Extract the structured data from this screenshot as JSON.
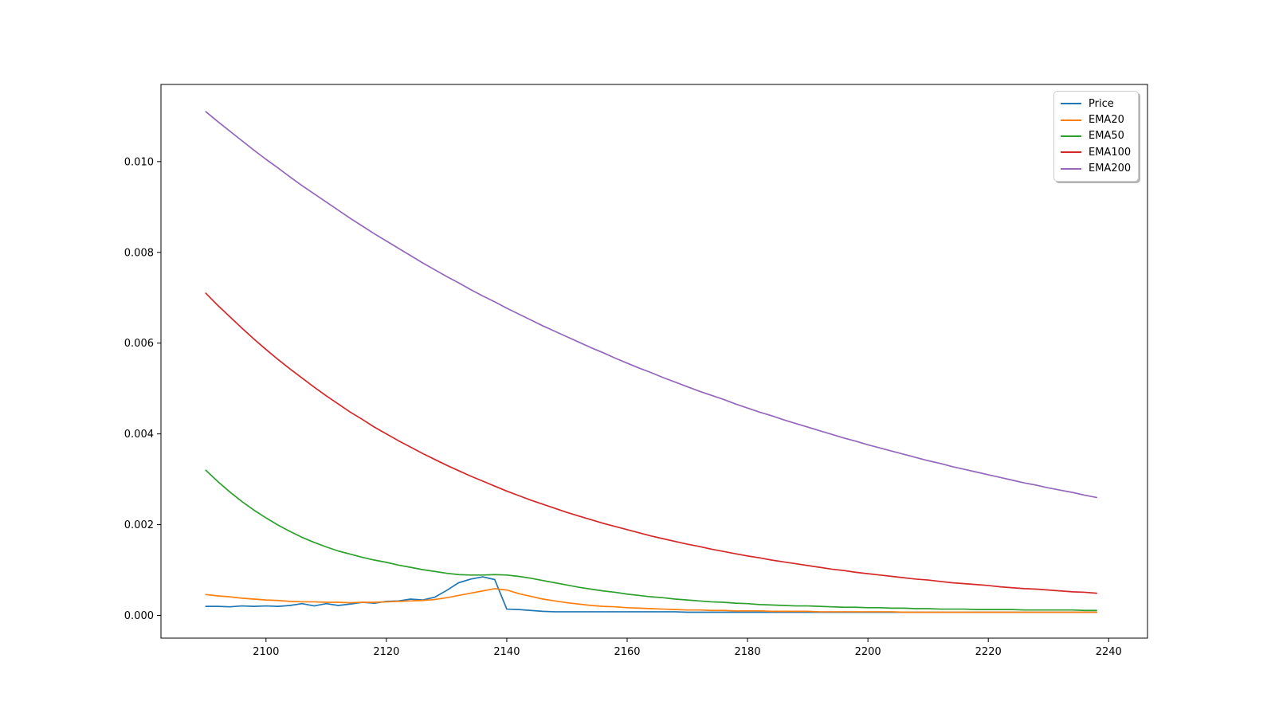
{
  "figure": {
    "background": "#ffffff",
    "frame_color": "#000000",
    "text_color": "#000000"
  },
  "legend": {
    "position": "upper right",
    "entries": [
      "Price",
      "EMA20",
      "EMA50",
      "EMA100",
      "EMA200"
    ]
  },
  "chart_data": {
    "type": "line",
    "title": "",
    "xlabel": "",
    "ylabel": "",
    "grid": false,
    "legend_position": "upper right",
    "xlim": [
      2082.55,
      2246.45
    ],
    "ylim": [
      -0.0005,
      0.0117
    ],
    "x_ticks": [
      2100,
      2120,
      2140,
      2160,
      2180,
      2200,
      2220,
      2240
    ],
    "x_tick_labels": [
      "2100",
      "2120",
      "2140",
      "2160",
      "2180",
      "2200",
      "2220",
      "2240"
    ],
    "y_ticks": [
      0.0,
      0.002,
      0.004,
      0.006,
      0.008,
      0.01
    ],
    "y_tick_labels": [
      "0.000",
      "0.002",
      "0.004",
      "0.006",
      "0.008",
      "0.010"
    ],
    "x": [
      2090,
      2092,
      2094,
      2096,
      2098,
      2100,
      2102,
      2104,
      2106,
      2108,
      2110,
      2112,
      2114,
      2116,
      2118,
      2120,
      2122,
      2124,
      2126,
      2128,
      2130,
      2132,
      2134,
      2136,
      2138,
      2140,
      2142,
      2144,
      2146,
      2148,
      2150,
      2152,
      2154,
      2156,
      2158,
      2160,
      2162,
      2164,
      2166,
      2168,
      2170,
      2172,
      2174,
      2176,
      2178,
      2180,
      2182,
      2184,
      2186,
      2188,
      2190,
      2192,
      2194,
      2196,
      2198,
      2200,
      2202,
      2204,
      2206,
      2208,
      2210,
      2212,
      2214,
      2216,
      2218,
      2220,
      2222,
      2224,
      2226,
      2228,
      2230,
      2232,
      2234,
      2236,
      2238
    ],
    "series": [
      {
        "name": "Price",
        "color": "#1f77b4",
        "values": [
          0.0002,
          0.0002,
          0.00019,
          0.00021,
          0.0002,
          0.00021,
          0.0002,
          0.00022,
          0.00026,
          0.00021,
          0.00026,
          0.00022,
          0.00025,
          0.00029,
          0.00027,
          0.00031,
          0.00032,
          0.00036,
          0.00034,
          0.0004,
          0.00055,
          0.00072,
          0.0008,
          0.00085,
          0.00079,
          0.00014,
          0.00013,
          0.00011,
          9e-05,
          8e-05,
          8e-05,
          8e-05,
          8e-05,
          8e-05,
          8e-05,
          8e-05,
          8e-05,
          8e-05,
          8e-05,
          8e-05,
          7e-05,
          7e-05,
          7e-05,
          7e-05,
          7e-05,
          7e-05,
          7e-05,
          7e-05,
          7e-05,
          7e-05,
          7e-05,
          7e-05,
          7e-05,
          7e-05,
          7e-05,
          7e-05,
          7e-05,
          7e-05,
          7e-05,
          7e-05,
          7e-05,
          7e-05,
          7e-05,
          7e-05,
          7e-05,
          7e-05,
          7e-05,
          7e-05,
          7e-05,
          7e-05,
          7e-05,
          7e-05,
          7e-05,
          7e-05,
          7e-05
        ]
      },
      {
        "name": "EMA20",
        "color": "#ff7f0e",
        "values": [
          0.00046,
          0.00043,
          0.00041,
          0.00038,
          0.00036,
          0.00034,
          0.00033,
          0.00031,
          0.0003,
          0.0003,
          0.00029,
          0.00029,
          0.00028,
          0.00029,
          0.00029,
          0.0003,
          0.00031,
          0.00032,
          0.00033,
          0.00035,
          0.00039,
          0.00044,
          0.00049,
          0.00054,
          0.00059,
          0.00056,
          0.00048,
          0.00042,
          0.00036,
          0.00032,
          0.00028,
          0.00025,
          0.00022,
          0.0002,
          0.00019,
          0.00017,
          0.00016,
          0.00015,
          0.00014,
          0.00013,
          0.00012,
          0.00012,
          0.00011,
          0.00011,
          0.0001,
          0.0001,
          0.0001,
          9e-05,
          9e-05,
          9e-05,
          9e-05,
          8e-05,
          8e-05,
          8e-05,
          8e-05,
          8e-05,
          8e-05,
          8e-05,
          7e-05,
          7e-05,
          7e-05,
          7e-05,
          7e-05,
          7e-05,
          7e-05,
          7e-05,
          7e-05,
          7e-05,
          7e-05,
          7e-05,
          7e-05,
          7e-05,
          7e-05,
          7e-05,
          7e-05
        ]
      },
      {
        "name": "EMA50",
        "color": "#2ca02c",
        "values": [
          0.0032,
          0.00295,
          0.00272,
          0.00251,
          0.00232,
          0.00215,
          0.00199,
          0.00185,
          0.00172,
          0.00161,
          0.00151,
          0.00142,
          0.00135,
          0.00128,
          0.00122,
          0.00117,
          0.00111,
          0.00106,
          0.00101,
          0.00097,
          0.00093,
          0.0009,
          0.00089,
          0.00089,
          0.0009,
          0.00089,
          0.00086,
          0.00082,
          0.00077,
          0.00072,
          0.00067,
          0.00062,
          0.00058,
          0.00054,
          0.00051,
          0.00047,
          0.00044,
          0.00041,
          0.00039,
          0.00036,
          0.00034,
          0.00032,
          0.0003,
          0.00029,
          0.00027,
          0.00026,
          0.00024,
          0.00023,
          0.00022,
          0.00021,
          0.00021,
          0.0002,
          0.00019,
          0.00018,
          0.00018,
          0.00017,
          0.00017,
          0.00016,
          0.00016,
          0.00015,
          0.00015,
          0.00014,
          0.00014,
          0.00014,
          0.00013,
          0.00013,
          0.00013,
          0.00013,
          0.00012,
          0.00012,
          0.00012,
          0.00012,
          0.00012,
          0.00011,
          0.00011
        ]
      },
      {
        "name": "EMA100",
        "color": "#d62728",
        "values": [
          0.0071,
          0.00683,
          0.00658,
          0.00633,
          0.00609,
          0.00586,
          0.00564,
          0.00543,
          0.00523,
          0.00503,
          0.00484,
          0.00466,
          0.00448,
          0.00432,
          0.00415,
          0.004,
          0.00385,
          0.00371,
          0.00357,
          0.00344,
          0.00331,
          0.00319,
          0.00307,
          0.00296,
          0.00285,
          0.00274,
          0.00264,
          0.00254,
          0.00245,
          0.00236,
          0.00227,
          0.00219,
          0.00211,
          0.00203,
          0.00196,
          0.00189,
          0.00182,
          0.00175,
          0.00169,
          0.00163,
          0.00157,
          0.00152,
          0.00146,
          0.00141,
          0.00136,
          0.00131,
          0.00127,
          0.00122,
          0.00118,
          0.00114,
          0.0011,
          0.00106,
          0.00102,
          0.00099,
          0.00095,
          0.00092,
          0.00089,
          0.00086,
          0.00083,
          0.0008,
          0.00078,
          0.00075,
          0.00072,
          0.0007,
          0.00068,
          0.00066,
          0.00063,
          0.00061,
          0.00059,
          0.00058,
          0.00056,
          0.00054,
          0.00052,
          0.00051,
          0.00049
        ]
      },
      {
        "name": "EMA200",
        "color": "#9467bd",
        "values": [
          0.0111,
          0.01088,
          0.01067,
          0.01046,
          0.01025,
          0.01005,
          0.00986,
          0.00966,
          0.00947,
          0.00929,
          0.00911,
          0.00893,
          0.00875,
          0.00858,
          0.00841,
          0.00825,
          0.00809,
          0.00793,
          0.00777,
          0.00762,
          0.00747,
          0.00733,
          0.00718,
          0.00704,
          0.00691,
          0.00677,
          0.00664,
          0.00651,
          0.00638,
          0.00626,
          0.00614,
          0.00602,
          0.0059,
          0.00579,
          0.00567,
          0.00556,
          0.00545,
          0.00535,
          0.00524,
          0.00514,
          0.00504,
          0.00494,
          0.00485,
          0.00476,
          0.00466,
          0.00457,
          0.00448,
          0.0044,
          0.00431,
          0.00423,
          0.00415,
          0.00407,
          0.00399,
          0.00391,
          0.00384,
          0.00376,
          0.00369,
          0.00362,
          0.00355,
          0.00348,
          0.00341,
          0.00335,
          0.00328,
          0.00322,
          0.00316,
          0.0031,
          0.00304,
          0.00298,
          0.00292,
          0.00287,
          0.00281,
          0.00276,
          0.00271,
          0.00265,
          0.0026
        ]
      }
    ]
  }
}
